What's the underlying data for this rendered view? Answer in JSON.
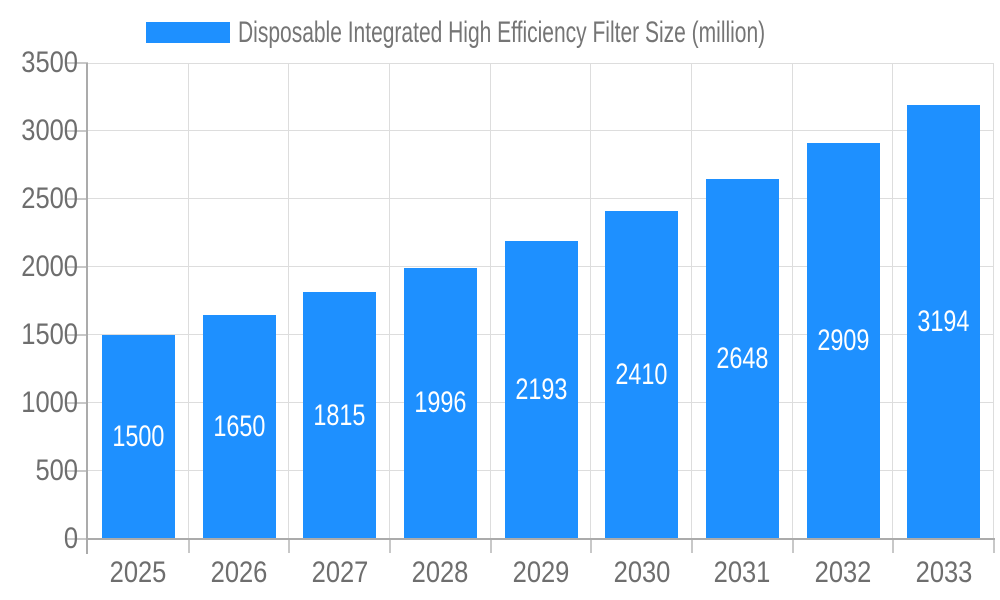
{
  "chart_data": {
    "type": "bar",
    "title": "Disposable Integrated High Efficiency Filter Size (million)",
    "categories": [
      "2025",
      "2026",
      "2027",
      "2028",
      "2029",
      "2030",
      "2031",
      "2032",
      "2033"
    ],
    "values": [
      1500,
      1650,
      1815,
      1996,
      2193,
      2410,
      2648,
      2909,
      3194
    ],
    "xlabel": "",
    "ylabel": "",
    "ylim": [
      0,
      3500
    ],
    "yticks": [
      0,
      500,
      1000,
      1500,
      2000,
      2500,
      3000,
      3500
    ],
    "grid": true,
    "legend_position": "top",
    "bar_value_labels": "inside-center",
    "colors": {
      "bar": "#1E90FF",
      "value_label": "#ffffff",
      "axis_label": "#6e6e6e",
      "legend_text": "#757575",
      "grid": "#dddddd",
      "axis": "#ababab",
      "tick": "#c8c8c8"
    }
  }
}
